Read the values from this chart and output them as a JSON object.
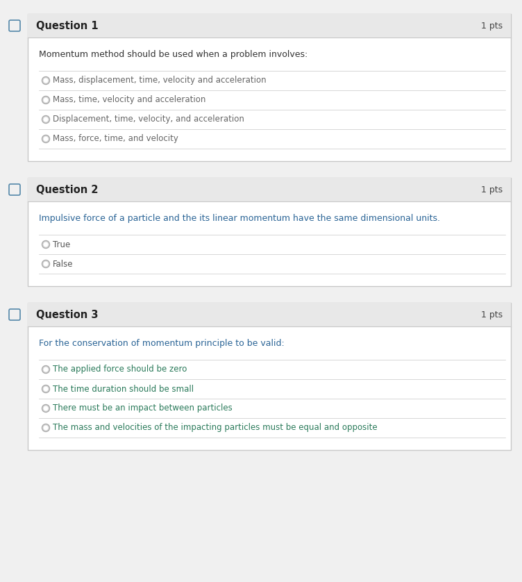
{
  "bg_color": "#f0f0f0",
  "card_bg": "#ffffff",
  "header_bg": "#e8e8e8",
  "border_color": "#c8c8c8",
  "header_text_color": "#222222",
  "pts_text_color": "#444444",
  "radio_border_color": "#aaaaaa",
  "radio_fill_color": "#d8d8d8",
  "checkbox_color": "#5588aa",
  "outer_gap_color": "#f0f0f0",
  "questions": [
    {
      "number": "Question 1",
      "pts": "1 pts",
      "prompt": "Momentum method should be used when a problem involves:",
      "prompt_color": "#333333",
      "options_color": "#666666",
      "options": [
        "Mass, displacement, time, velocity and acceleration",
        "Mass, time, velocity and acceleration",
        "Displacement, time, velocity, and acceleration",
        "Mass, force, time, and velocity"
      ]
    },
    {
      "number": "Question 2",
      "pts": "1 pts",
      "prompt": "Impulsive force of a particle and the its linear momentum have the same dimensional units.",
      "prompt_color": "#2a6496",
      "options_color": "#555555",
      "options": [
        "True",
        "False"
      ]
    },
    {
      "number": "Question 3",
      "pts": "1 pts",
      "prompt": "For the conservation of momentum principle to be valid:",
      "prompt_color": "#2a6496",
      "options_color": "#2a7a5a",
      "options": [
        "The applied force should be zero",
        "The time duration should be small",
        "There must be an impact between particles",
        "The mass and velocities of the impacting particles must be equal and opposite"
      ]
    }
  ],
  "fig_width": 7.52,
  "fig_height": 8.38,
  "dpi": 100
}
